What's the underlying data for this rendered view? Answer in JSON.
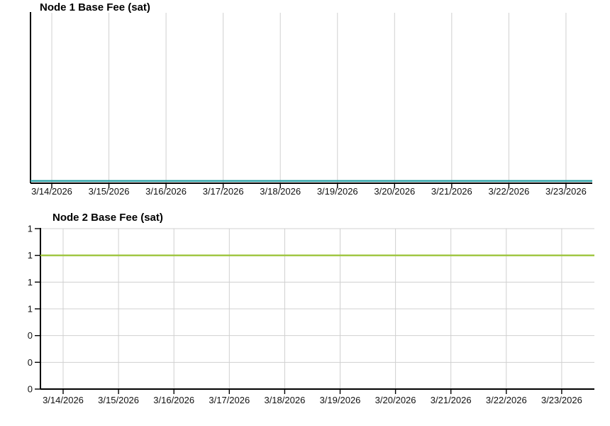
{
  "page": {
    "background_color": "#ffffff"
  },
  "chart_data": [
    {
      "type": "line",
      "title": "Node 1 Base Fee (sat)",
      "xlabel": "",
      "ylabel": "",
      "categories": [
        "3/14/2026",
        "3/15/2026",
        "3/16/2026",
        "3/17/2026",
        "3/18/2026",
        "3/19/2026",
        "3/20/2026",
        "3/21/2026",
        "3/22/2026",
        "3/23/2026"
      ],
      "series": [
        {
          "name": "Node 1 Base Fee",
          "values": [
            0,
            0,
            0,
            0,
            0,
            0,
            0,
            0,
            0,
            0
          ],
          "color": "#28a0a5"
        }
      ],
      "ylim": [
        0,
        1
      ],
      "y_tick_labels": [],
      "grid": "vertical-only",
      "legend": "none",
      "axis_color": "#000000",
      "grid_color": "#d0d0d0",
      "tick_label_color": "#111111"
    },
    {
      "type": "line",
      "title": "Node 2 Base Fee (sat)",
      "xlabel": "",
      "ylabel": "",
      "categories": [
        "3/14/2026",
        "3/15/2026",
        "3/16/2026",
        "3/17/2026",
        "3/18/2026",
        "3/19/2026",
        "3/20/2026",
        "3/21/2026",
        "3/22/2026",
        "3/23/2026"
      ],
      "series": [
        {
          "name": "Node 2 Base Fee",
          "values": [
            1,
            1,
            1,
            1,
            1,
            1,
            1,
            1,
            1,
            1
          ],
          "color": "#9dc53c"
        }
      ],
      "ylim": [
        0,
        1.2
      ],
      "y_tick_labels": [
        "1",
        "1",
        "1",
        "1",
        "0",
        "0",
        "0"
      ],
      "grid": "both",
      "legend": "none",
      "axis_color": "#000000",
      "grid_color": "#d0d0d0",
      "tick_label_color": "#111111"
    }
  ]
}
